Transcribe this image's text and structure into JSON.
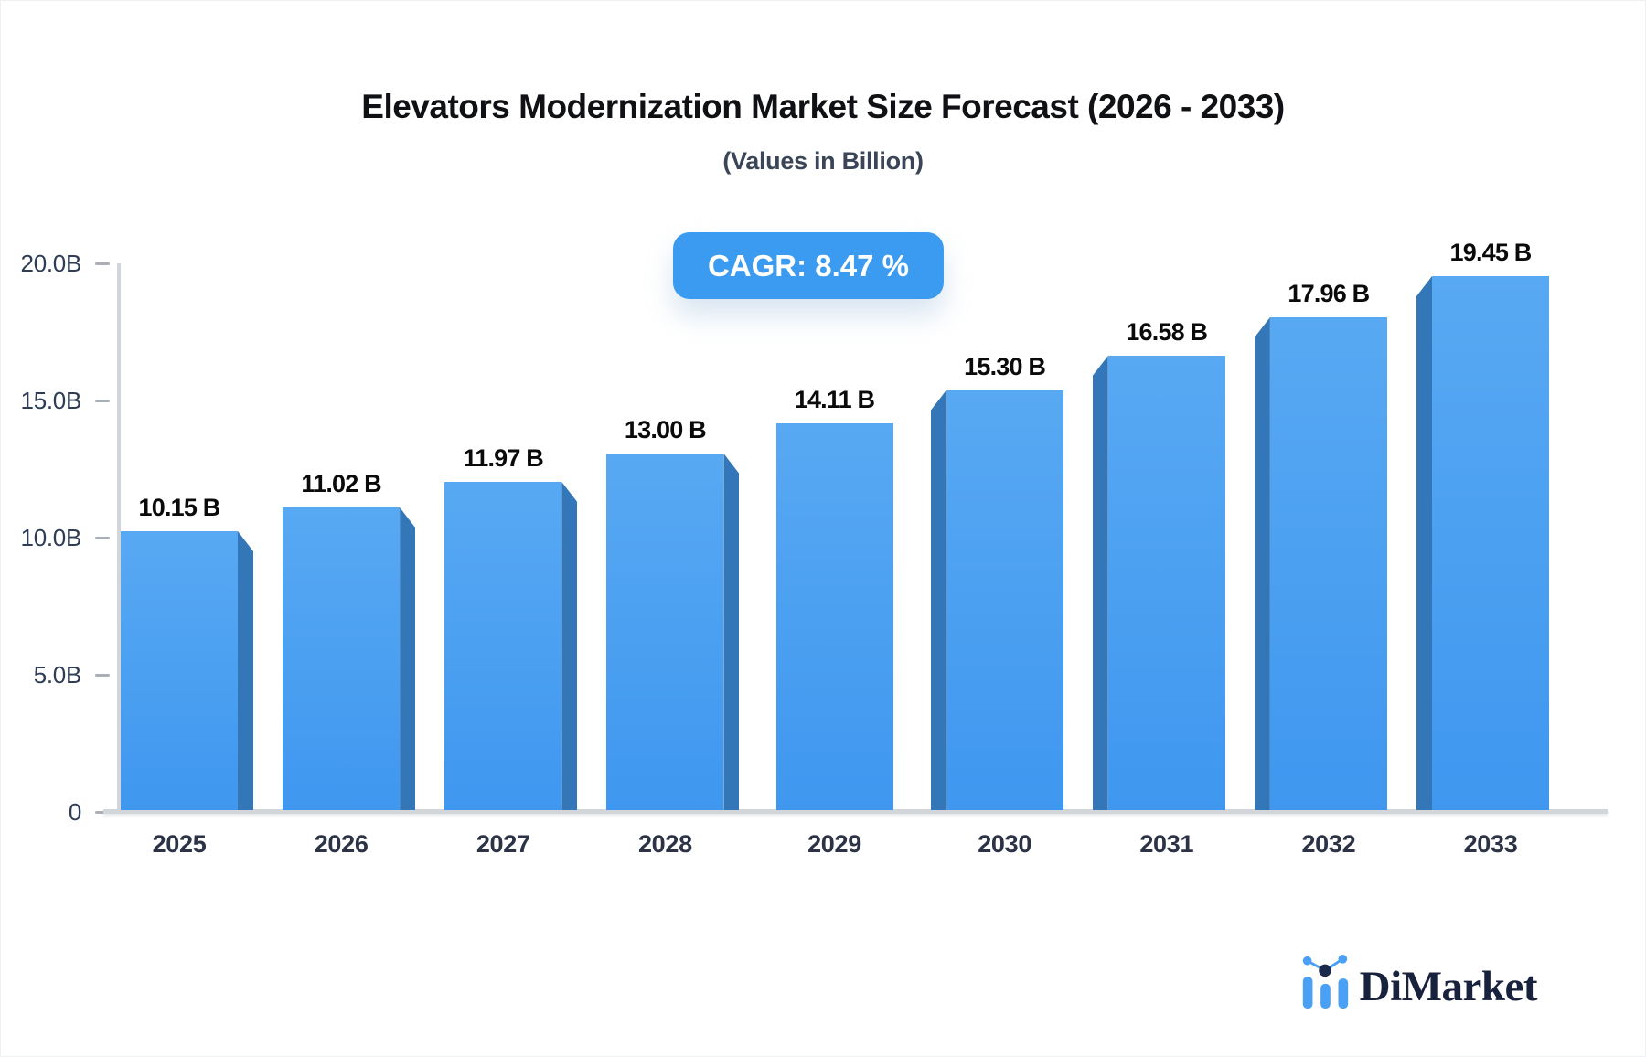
{
  "header": {
    "title": "Elevators Modernization Market Size Forecast (2026 - 2033)",
    "subtitle": "(Values in Billion)",
    "cagr_badge": "CAGR: 8.47 %"
  },
  "chart_data": {
    "type": "bar",
    "title": "Elevators Modernization Market Size Forecast (2026 - 2033)",
    "subtitle": "(Values in Billion)",
    "categories": [
      "2025",
      "2026",
      "2027",
      "2028",
      "2029",
      "2030",
      "2031",
      "2032",
      "2033"
    ],
    "values": [
      10.15,
      11.02,
      11.97,
      13.0,
      14.11,
      15.3,
      16.58,
      17.96,
      19.45
    ],
    "bar_labels": [
      "10.15 B",
      "11.02 B",
      "11.97 B",
      "13.00 B",
      "14.11 B",
      "15.30 B",
      "16.58 B",
      "17.96 B",
      "19.45 B"
    ],
    "unit": "Billion",
    "xlabel": "",
    "ylabel": "",
    "ylim": [
      0,
      20
    ],
    "yticks": [
      {
        "label": "20.0B",
        "value": 20
      },
      {
        "label": "15.0B",
        "value": 15
      },
      {
        "label": "10.0B",
        "value": 10
      },
      {
        "label": "5.0B",
        "value": 5
      },
      {
        "label": "0",
        "value": 0
      }
    ],
    "grid": false,
    "legend": "none",
    "annotation": "CAGR: 8.47 %",
    "colors": {
      "bar_face_top": "#58a9f3",
      "bar_face_bottom": "#3f97ef",
      "bar_side": "#3377b8",
      "badge_background": "#3b9bf1",
      "badge_text": "#ffffff",
      "axis_line": "#d2d5da"
    }
  },
  "footer": {
    "brand": "DiMarket",
    "logo_icon": "bar-line-chart-icon",
    "logo_blue": "#4aa0f5",
    "logo_navy": "#1b2a4a"
  }
}
